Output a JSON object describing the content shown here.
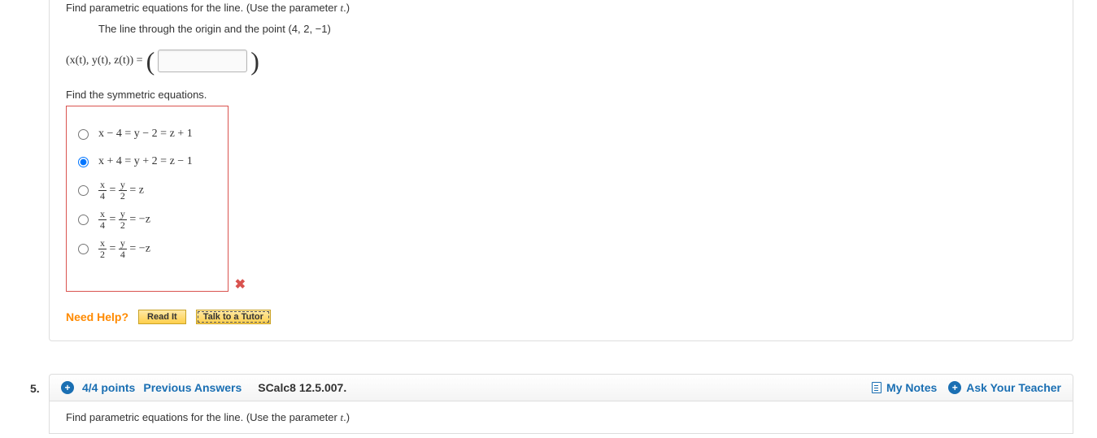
{
  "question1": {
    "prompt_prefix": "Find parametric equations for the line. (Use the parameter ",
    "prompt_var": "t",
    "prompt_suffix": ".)",
    "subprompt": "The line through the origin and the point (4, 2, −1)",
    "lhs": "(x(t), y(t), z(t)) = ",
    "input_value": "",
    "section_label": "Find the symmetric equations.",
    "options": [
      {
        "type": "plain",
        "text": "x − 4 = y − 2 = z + 1",
        "selected": false
      },
      {
        "type": "plain",
        "text": "x + 4 = y + 2 = z − 1",
        "selected": true
      },
      {
        "type": "frac",
        "n1": "x",
        "d1": "4",
        "n2": "y",
        "d2": "2",
        "rhs": " = z",
        "selected": false
      },
      {
        "type": "frac",
        "n1": "x",
        "d1": "4",
        "n2": "y",
        "d2": "2",
        "rhs": " = −z",
        "selected": false
      },
      {
        "type": "frac",
        "n1": "x",
        "d1": "2",
        "n2": "y",
        "d2": "4",
        "rhs": " = −z",
        "selected": false
      }
    ],
    "wrong_mark": "✖",
    "need_help_label": "Need Help?",
    "read_it": "Read It",
    "talk_tutor": "Talk to a Tutor"
  },
  "question2": {
    "number": "5.",
    "points": "4/4 points",
    "previous_answers": "Previous Answers",
    "book_ref": "SCalc8 12.5.007.",
    "my_notes": "My Notes",
    "ask_teacher": "Ask Your Teacher",
    "prompt_prefix": "Find parametric equations for the line. (Use the parameter ",
    "prompt_var": "t",
    "prompt_suffix": ".)"
  },
  "colors": {
    "link_blue": "#1a6fb3",
    "error_red": "#d9534f",
    "help_orange": "#ff8a00"
  }
}
